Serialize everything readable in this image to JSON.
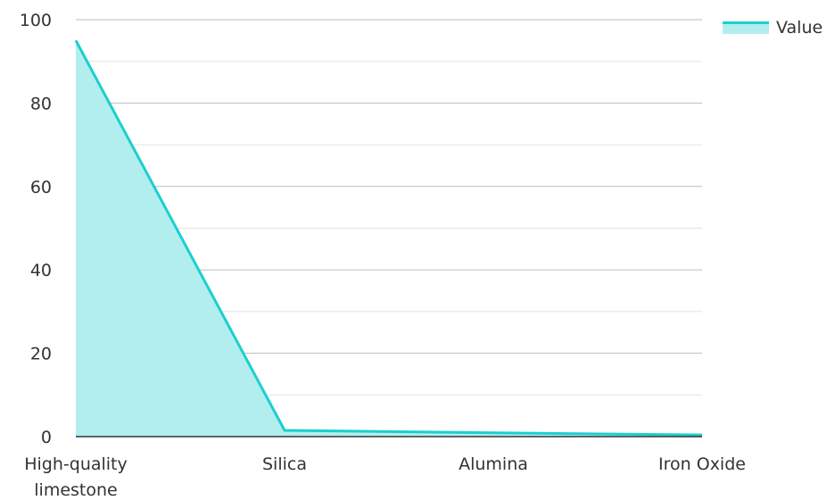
{
  "chart_data": {
    "type": "area",
    "categories": [
      "High-quality limestone",
      "Silica",
      "Alumina",
      "Iron Oxide"
    ],
    "series": [
      {
        "name": "Value",
        "values": [
          95,
          1.5,
          0.9,
          0.4
        ]
      }
    ],
    "ylim": [
      0,
      100
    ],
    "yticks": [
      0,
      20,
      40,
      60,
      80,
      100
    ],
    "grid": true,
    "legend_position": "top-right",
    "colors": {
      "line": "#1ccfcf",
      "fill": "#b2eeee",
      "grid": "#cccccc",
      "axis": "#333333"
    }
  }
}
